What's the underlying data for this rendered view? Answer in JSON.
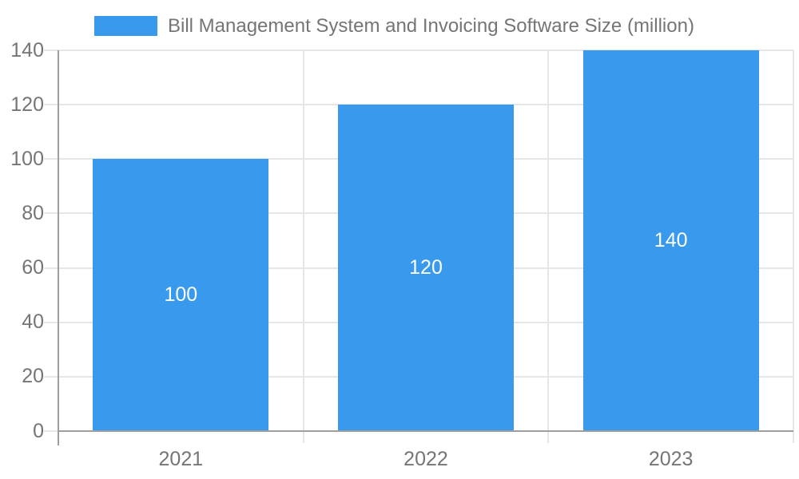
{
  "chart_data": {
    "type": "bar",
    "title": "Bill Management System and Invoicing Software Size (million)",
    "categories": [
      "2021",
      "2022",
      "2023"
    ],
    "values": [
      100,
      120,
      140
    ],
    "bar_labels": [
      "100",
      "120",
      "140"
    ],
    "y_tick_labels": [
      "0",
      "20",
      "40",
      "60",
      "80",
      "100",
      "120",
      "140"
    ],
    "y_ticks": [
      0,
      20,
      40,
      60,
      80,
      100,
      120,
      140
    ],
    "ylim": [
      0,
      140
    ],
    "xlabel": "",
    "ylabel": "",
    "grid": true,
    "legend_position": "top",
    "colors": {
      "bar": "#3999EC",
      "grid": "#E6E6E6",
      "axis": "#9E9E9E",
      "tick_label": "#757575",
      "bar_label": "#FFFFFF",
      "legend_text": "#757575"
    }
  }
}
